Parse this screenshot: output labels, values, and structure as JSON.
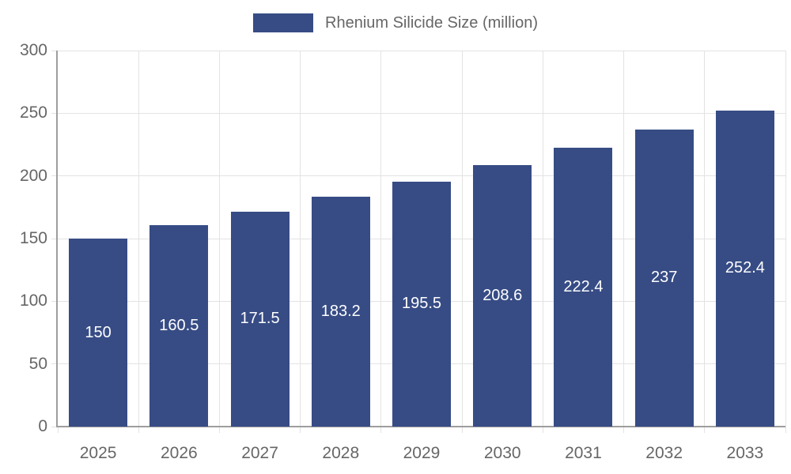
{
  "chart_data": {
    "type": "bar",
    "title": "",
    "legend": {
      "label": "Rhenium Silicide Size (million)",
      "position": "top"
    },
    "categories": [
      "2025",
      "2026",
      "2027",
      "2028",
      "2029",
      "2030",
      "2031",
      "2032",
      "2033"
    ],
    "values": [
      150,
      160.5,
      171.5,
      183.2,
      195.5,
      208.6,
      222.4,
      237,
      252.4
    ],
    "labels": [
      "150",
      "160.5",
      "171.5",
      "183.2",
      "195.5",
      "208.6",
      "222.4",
      "237",
      "252.4"
    ],
    "xlabel": "",
    "ylabel": "",
    "ylim": [
      0,
      300
    ],
    "yticks": [
      0,
      50,
      100,
      150,
      200,
      250,
      300
    ],
    "grid": true,
    "legend_position": "top-center",
    "colors": {
      "bar": "#374c85",
      "grid": "#e3e3e3",
      "axis": "#9e9e9e",
      "text": "#666666",
      "bar_label": "#ffffff",
      "background": "#ffffff"
    }
  }
}
